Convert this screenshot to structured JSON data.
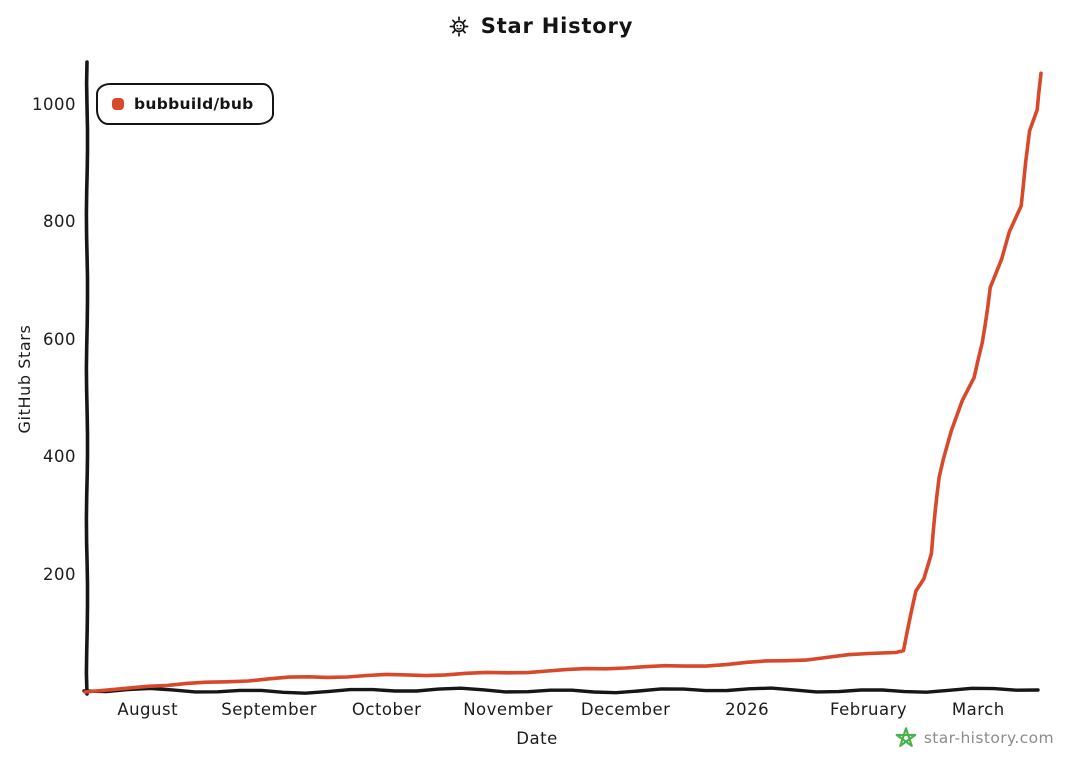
{
  "title": {
    "icon": "sun-face-icon",
    "text": "Star History"
  },
  "legend": [
    {
      "label": "bubbuild/bub",
      "color": "#D8492B"
    }
  ],
  "axes": {
    "y_label": "GitHub Stars",
    "x_label": "Date"
  },
  "watermark": {
    "text": "star-history.com",
    "text_color": "#8C8C8C",
    "star_color": "#4CB14C"
  },
  "colors": {
    "axis": "#161616",
    "tick_text": "#1c1c1c",
    "background": "#ffffff"
  },
  "chart_data": {
    "type": "line",
    "title": "Star History",
    "xlabel": "Date",
    "ylabel": "GitHub Stars",
    "grid": false,
    "legend_position": "top-left",
    "x_domain": [
      "2025-07-16",
      "2026-03-17"
    ],
    "ylim": [
      0,
      1070
    ],
    "y_ticks": [
      200,
      400,
      600,
      800,
      1000
    ],
    "x_ticks": [
      {
        "date": "2025-08-01",
        "label": "August"
      },
      {
        "date": "2025-09-01",
        "label": "September"
      },
      {
        "date": "2025-10-01",
        "label": "October"
      },
      {
        "date": "2025-11-01",
        "label": "November"
      },
      {
        "date": "2025-12-01",
        "label": "December"
      },
      {
        "date": "2026-01-01",
        "label": "2026"
      },
      {
        "date": "2026-02-01",
        "label": "February"
      },
      {
        "date": "2026-03-01",
        "label": "March"
      }
    ],
    "series": [
      {
        "name": "bubbuild/bub",
        "color": "#D8492B",
        "points": [
          [
            "2025-07-16",
            0
          ],
          [
            "2025-07-24",
            5
          ],
          [
            "2025-08-01",
            12
          ],
          [
            "2025-08-16",
            16
          ],
          [
            "2025-09-01",
            22
          ],
          [
            "2025-09-16",
            25
          ],
          [
            "2025-10-01",
            29
          ],
          [
            "2025-10-16",
            31
          ],
          [
            "2025-11-01",
            33
          ],
          [
            "2025-11-16",
            36
          ],
          [
            "2025-12-01",
            42
          ],
          [
            "2025-12-16",
            45
          ],
          [
            "2026-01-01",
            50
          ],
          [
            "2026-01-16",
            55
          ],
          [
            "2026-02-01",
            64
          ],
          [
            "2026-02-08",
            68
          ],
          [
            "2026-02-10",
            72
          ],
          [
            "2026-02-13",
            173
          ],
          [
            "2026-02-15",
            195
          ],
          [
            "2026-02-17",
            237
          ],
          [
            "2026-02-18",
            302
          ],
          [
            "2026-02-19",
            367
          ],
          [
            "2026-02-20",
            396
          ],
          [
            "2026-02-22",
            442
          ],
          [
            "2026-02-25",
            498
          ],
          [
            "2026-02-28",
            537
          ],
          [
            "2026-03-02",
            595
          ],
          [
            "2026-03-04",
            690
          ],
          [
            "2026-03-07",
            736
          ],
          [
            "2026-03-09",
            782
          ],
          [
            "2026-03-12",
            828
          ],
          [
            "2026-03-13",
            901
          ],
          [
            "2026-03-14",
            954
          ],
          [
            "2026-03-16",
            991
          ],
          [
            "2026-03-17",
            1054
          ]
        ]
      }
    ]
  }
}
